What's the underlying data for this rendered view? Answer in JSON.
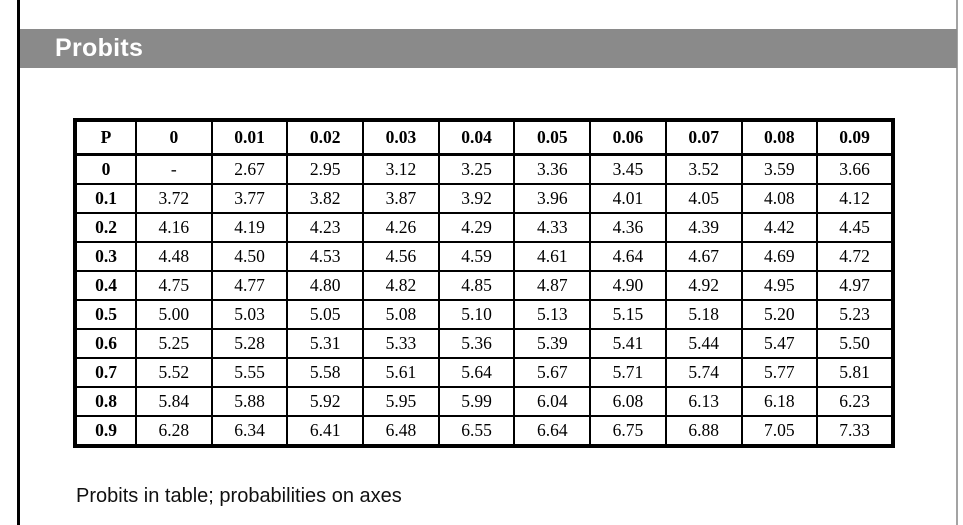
{
  "page": {
    "title_bar": {
      "label": "Probits",
      "background_color": "#8a8a8a",
      "text_color": "#ffffff"
    },
    "caption": "Probits in table; probabilities on axes",
    "colors": {
      "left_rule": "#000000",
      "right_rule": "#a3a3a3",
      "background": "#ffffff",
      "table_border": "#000000"
    }
  },
  "table": {
    "columns": [
      "P",
      "0",
      "0.01",
      "0.02",
      "0.03",
      "0.04",
      "0.05",
      "0.06",
      "0.07",
      "0.08",
      "0.09"
    ],
    "rows": [
      [
        "0",
        "-",
        "2.67",
        "2.95",
        "3.12",
        "3.25",
        "3.36",
        "3.45",
        "3.52",
        "3.59",
        "3.66"
      ],
      [
        "0.1",
        "3.72",
        "3.77",
        "3.82",
        "3.87",
        "3.92",
        "3.96",
        "4.01",
        "4.05",
        "4.08",
        "4.12"
      ],
      [
        "0.2",
        "4.16",
        "4.19",
        "4.23",
        "4.26",
        "4.29",
        "4.33",
        "4.36",
        "4.39",
        "4.42",
        "4.45"
      ],
      [
        "0.3",
        "4.48",
        "4.50",
        "4.53",
        "4.56",
        "4.59",
        "4.61",
        "4.64",
        "4.67",
        "4.69",
        "4.72"
      ],
      [
        "0.4",
        "4.75",
        "4.77",
        "4.80",
        "4.82",
        "4.85",
        "4.87",
        "4.90",
        "4.92",
        "4.95",
        "4.97"
      ],
      [
        "0.5",
        "5.00",
        "5.03",
        "5.05",
        "5.08",
        "5.10",
        "5.13",
        "5.15",
        "5.18",
        "5.20",
        "5.23"
      ],
      [
        "0.6",
        "5.25",
        "5.28",
        "5.31",
        "5.33",
        "5.36",
        "5.39",
        "5.41",
        "5.44",
        "5.47",
        "5.50"
      ],
      [
        "0.7",
        "5.52",
        "5.55",
        "5.58",
        "5.61",
        "5.64",
        "5.67",
        "5.71",
        "5.74",
        "5.77",
        "5.81"
      ],
      [
        "0.8",
        "5.84",
        "5.88",
        "5.92",
        "5.95",
        "5.99",
        "6.04",
        "6.08",
        "6.13",
        "6.18",
        "6.23"
      ],
      [
        "0.9",
        "6.28",
        "6.34",
        "6.41",
        "6.48",
        "6.55",
        "6.64",
        "6.75",
        "6.88",
        "7.05",
        "7.33"
      ]
    ]
  }
}
